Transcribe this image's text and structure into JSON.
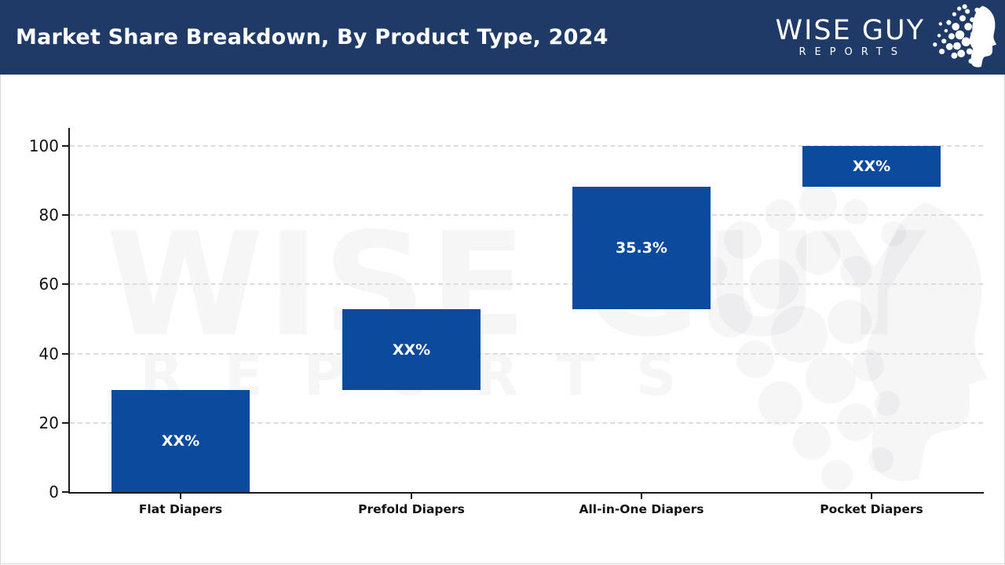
{
  "header": {
    "title": "Market Share Breakdown, By Product Type, 2024",
    "logo": {
      "line1": "WISE GUY",
      "line2": "REPORTS"
    }
  },
  "watermark": {
    "line1": "WISE GUY",
    "line2": "REPORTS"
  },
  "chart_data": {
    "type": "bar",
    "variant": "waterfall",
    "title": "Market Share Breakdown, By Product Type, 2024",
    "categories": [
      "Flat Diapers",
      "Prefold Diapers",
      "All-in-One Diapers",
      "Pocket Diapers"
    ],
    "segment_values": [
      29.4,
      23.5,
      35.3,
      11.8
    ],
    "cumulative_start": [
      0,
      29.4,
      52.9,
      88.2
    ],
    "cumulative_end": [
      29.4,
      52.9,
      88.2,
      100
    ],
    "bar_labels": [
      "XX%",
      "XX%",
      "35.3%",
      "XX%"
    ],
    "y_ticks": [
      0,
      20,
      40,
      60,
      80,
      100
    ],
    "ylim": [
      0,
      105
    ],
    "xlabel": "",
    "ylabel": "",
    "grid": "horizontal-dashed",
    "legend": "none",
    "bar_color": "#0c4a9e",
    "bar_label_color": "#ffffff"
  },
  "colors": {
    "header_bg": "#1f3a66",
    "bar": "#0c4a9e",
    "gridline": "#dcdcdc",
    "axis": "#1a1a1a",
    "frame_border": "#d8d8d8"
  }
}
